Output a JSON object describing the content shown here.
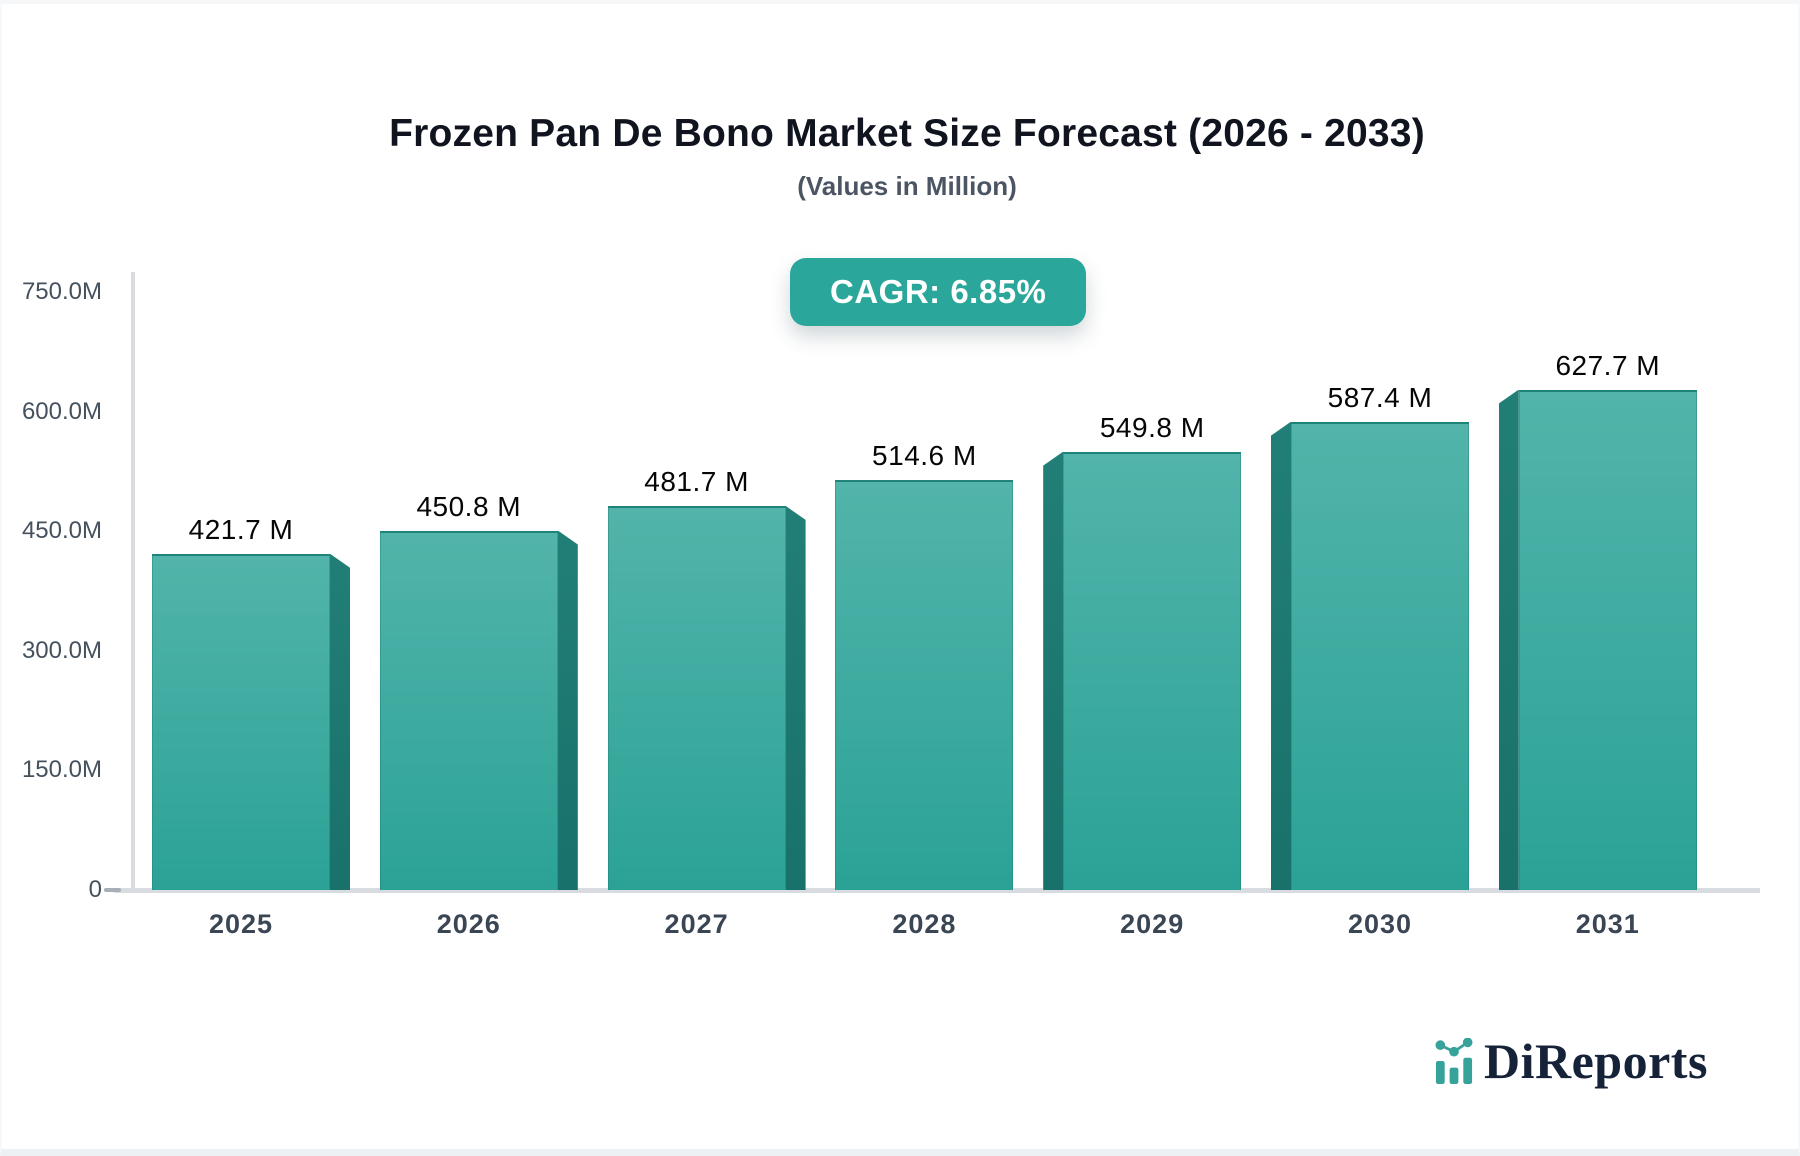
{
  "chart_data": {
    "type": "bar",
    "title": "Frozen Pan De Bono Market Size Forecast (2026 - 2033)",
    "subtitle": "(Values in Million)",
    "cagr_badge": "CAGR: 6.85%",
    "categories": [
      "2025",
      "2026",
      "2027",
      "2028",
      "2029",
      "2030",
      "2031"
    ],
    "values": [
      421.7,
      450.8,
      481.7,
      514.6,
      549.8,
      587.4,
      627.7
    ],
    "value_labels": [
      "421.7 M",
      "450.8 M",
      "481.7 M",
      "514.6 M",
      "549.8 M",
      "587.4 M",
      "627.7 M"
    ],
    "y_axis": {
      "range": [
        0,
        750
      ],
      "ticks": [
        {
          "label": "750.0M",
          "value": 750
        },
        {
          "label": "600.0M",
          "value": 600
        },
        {
          "label": "450.0M",
          "value": 450
        },
        {
          "label": "300.0M",
          "value": 300
        },
        {
          "label": "150.0M",
          "value": 150
        },
        {
          "label": "0",
          "value": 0
        }
      ]
    },
    "xlabel": "",
    "ylabel": "",
    "grid": false,
    "legend_position": "none",
    "colors": {
      "bar_top": "#52b4aa",
      "bar_bottom": "#2ba296",
      "bar_side_top": "#217f77",
      "bar_side_bottom": "#19716b",
      "badge_bg": "#2aa79a",
      "badge_text": "#ffffff",
      "axis_line": "#d8dbe0",
      "tick_text": "#46515e",
      "x_label_text": "#3a4654",
      "title_text": "#10141f",
      "subtitle_text": "#4b5563",
      "value_text": "#060606"
    }
  },
  "branding": {
    "logo_text": "DiReports",
    "logo_text_color": "#152238",
    "logo_icon": "bar-chart-trend-icon",
    "logo_icon_color": "#37a29a"
  }
}
